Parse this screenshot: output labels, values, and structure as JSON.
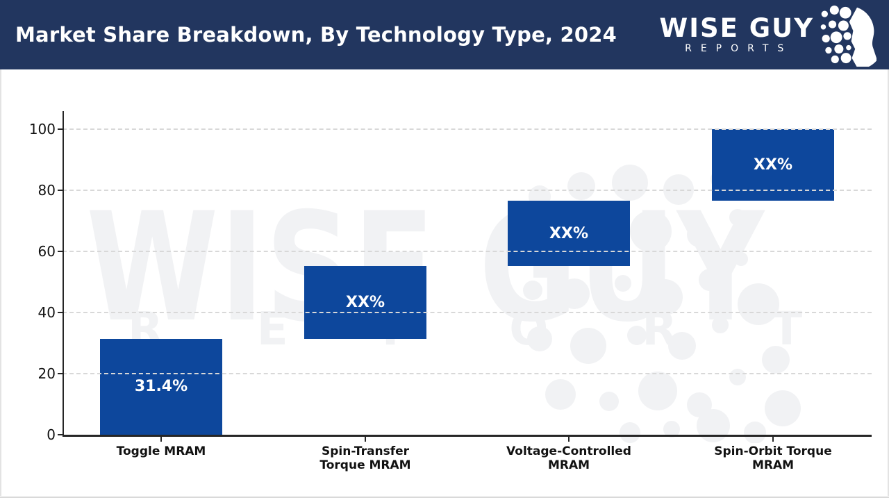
{
  "header": {
    "title": "Market Share Breakdown, By Technology Type, 2024",
    "brand": {
      "line1": "WISE GUY",
      "line2": "REPORTS"
    }
  },
  "watermark": {
    "line1": "WISE GUY",
    "line2": "R E P O R T S"
  },
  "colors": {
    "header_bg": "#22365f",
    "bar": "#0d479c",
    "grid": "#d8d8d8",
    "axis": "#262626",
    "watermark": "#f1f2f4",
    "bar_label": "#ffffff"
  },
  "chart_data": {
    "type": "bar",
    "subtype": "waterfall-stacked-share",
    "title": "Market Share Breakdown, By Technology Type, 2024",
    "categories": [
      "Toggle MRAM",
      "Spin-Transfer Torque MRAM",
      "Voltage-Controlled MRAM",
      "Spin-Orbit Torque MRAM"
    ],
    "category_label_lines": [
      [
        "Toggle MRAM"
      ],
      [
        "Spin-Transfer",
        "Torque MRAM"
      ],
      [
        "Voltage-Controlled",
        "MRAM"
      ],
      [
        "Spin-Orbit Torque",
        "MRAM"
      ]
    ],
    "segments": [
      {
        "category": "Toggle MRAM",
        "start": 0,
        "end": 31.4,
        "label": "31.4%"
      },
      {
        "category": "Spin-Transfer Torque MRAM",
        "start": 31.4,
        "end": 55.3,
        "label": "XX%"
      },
      {
        "category": "Voltage-Controlled MRAM",
        "start": 55.3,
        "end": 76.5,
        "label": "XX%"
      },
      {
        "category": "Spin-Orbit Torque MRAM",
        "start": 76.5,
        "end": 100,
        "label": "XX%"
      }
    ],
    "xlabel": "",
    "ylabel": "",
    "ylim": [
      0,
      100
    ],
    "yticks": [
      0,
      20,
      40,
      60,
      80,
      100
    ],
    "ytick_labels": [
      "0",
      "20",
      "40",
      "60",
      "80",
      "100"
    ],
    "grid": "horizontal-dashed-above-bars",
    "legend": "none"
  }
}
